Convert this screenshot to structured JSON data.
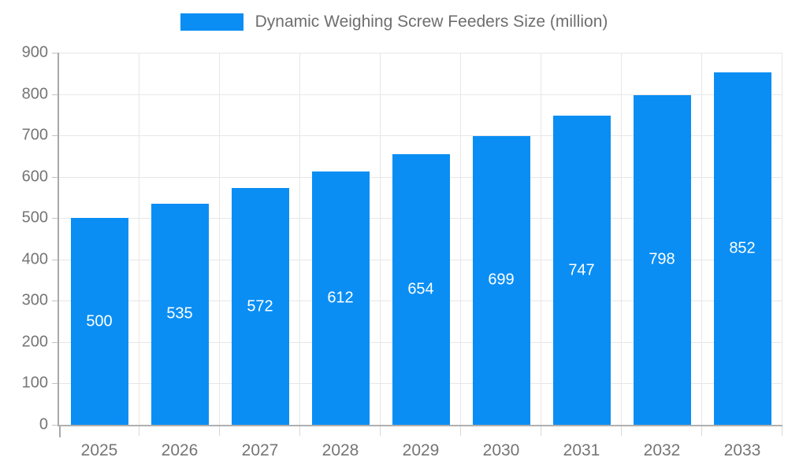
{
  "chart_data": {
    "type": "bar",
    "title": "Dynamic Weighing Screw Feeders Size (million)",
    "categories": [
      "2025",
      "2026",
      "2027",
      "2028",
      "2029",
      "2030",
      "2031",
      "2032",
      "2033"
    ],
    "values": [
      500,
      535,
      572,
      612,
      654,
      699,
      747,
      798,
      852
    ],
    "xlabel": "",
    "ylabel": "",
    "ylim": [
      0,
      900
    ],
    "ytick_step": 100,
    "grid": true,
    "legend_position": "top",
    "colors": {
      "bar": "#0a8ef4",
      "value_label": "#ffffff",
      "axis_text": "#757575",
      "legend_text": "#6e6e6e",
      "gridline": "#e7e7e7",
      "axis_line": "#aaaaaa"
    }
  }
}
